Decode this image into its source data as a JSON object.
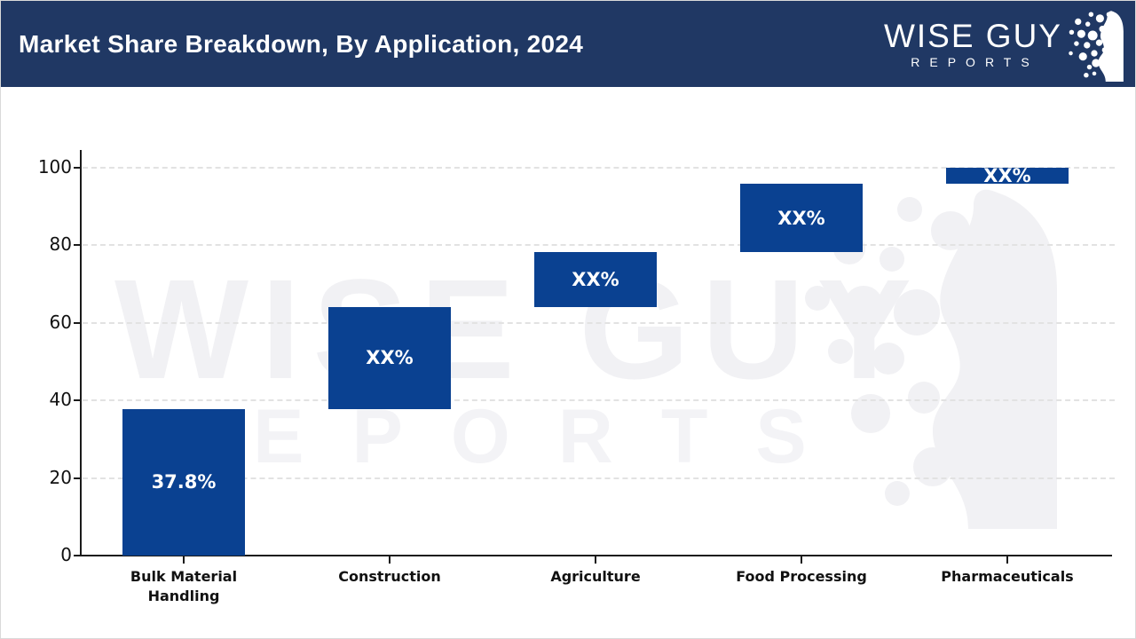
{
  "header": {
    "title": "Market Share Breakdown, By Application, 2024",
    "logo": {
      "wordmark": "WISE GUY",
      "subtext": "REPORTS"
    }
  },
  "watermark": {
    "line1": "WISE GUY",
    "line2": "REPORTS"
  },
  "chart_data": {
    "type": "bar",
    "subtype": "waterfall",
    "title": "Market Share Breakdown, By Application, 2024",
    "unit": "%",
    "categories": [
      "Bulk Material Handling",
      "Construction",
      "Agriculture",
      "Food Processing",
      "Pharmaceuticals"
    ],
    "segments": [
      {
        "category": "Bulk Material Handling",
        "start": 0,
        "end": 37.8,
        "label": "37.8%"
      },
      {
        "category": "Construction",
        "start": 37.8,
        "end": 64,
        "label": "XX%"
      },
      {
        "category": "Agriculture",
        "start": 64,
        "end": 78.2,
        "label": "XX%"
      },
      {
        "category": "Food Processing",
        "start": 78.2,
        "end": 95.7,
        "label": "XX%"
      },
      {
        "category": "Pharmaceuticals",
        "start": 95.7,
        "end": 100,
        "label": "XX%"
      }
    ],
    "yticks": [
      0,
      20,
      40,
      60,
      80,
      100
    ],
    "ylim": [
      0,
      105
    ],
    "xlabel": "",
    "ylabel": "",
    "grid": "horizontal-dashed",
    "legend": "none",
    "colors": {
      "bar": "#0a4191",
      "bar_label": "#ffffff",
      "header_bg": "#203864",
      "header_text": "#ffffff",
      "axis": "#1a1a1a",
      "gridline": "#e2e2e2",
      "watermark": "#f1f1f4"
    }
  }
}
